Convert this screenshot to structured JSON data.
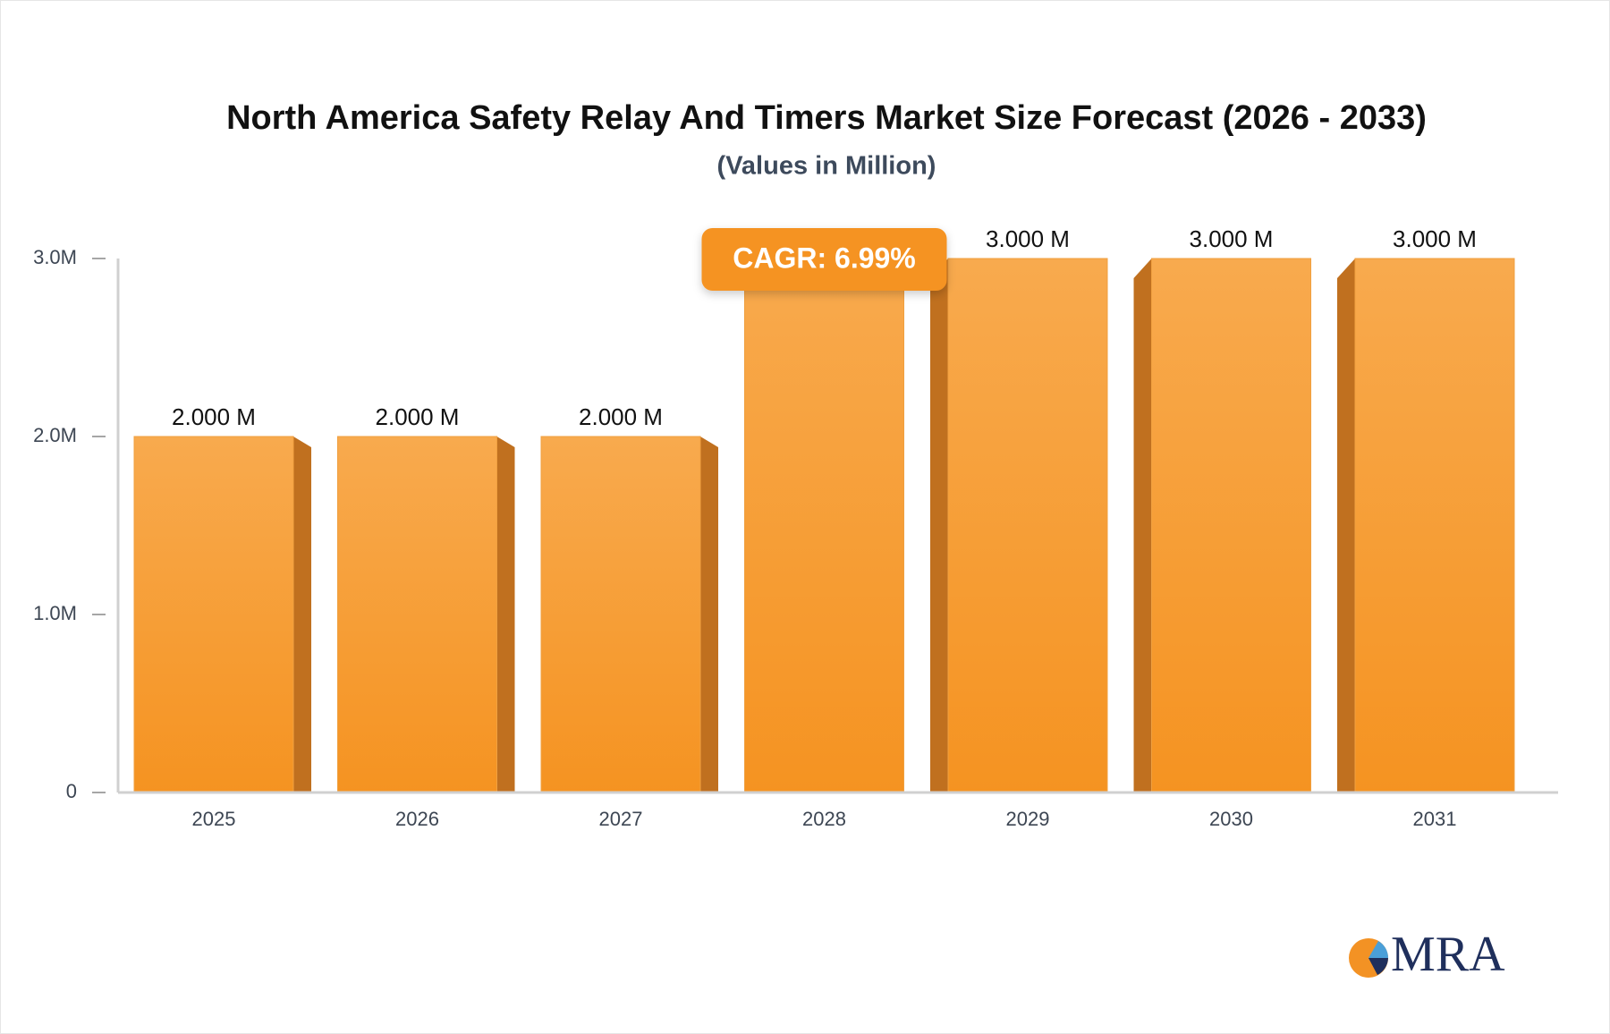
{
  "chart_data": {
    "type": "bar",
    "title": "North America Safety Relay And Timers Market Size Forecast (2026 - 2033)",
    "subtitle": "(Values in Million)",
    "categories": [
      "2025",
      "2026",
      "2027",
      "2028",
      "2029",
      "2030",
      "2031"
    ],
    "values": [
      2,
      2,
      2,
      3,
      3,
      3,
      3
    ],
    "value_labels": [
      "2.000 M",
      "2.000 M",
      "2.000 M",
      null,
      "3.000 M",
      "3.000 M",
      "3.000 M"
    ],
    "color": "#f7a13c",
    "ylim": [
      0,
      3
    ],
    "yticks": [
      0,
      {
        "value": 1,
        "label": "1.0M"
      },
      {
        "value": 2,
        "label": "2.0M"
      },
      {
        "value": 3,
        "label": "3.0M"
      }
    ],
    "grid": false,
    "annotation": "CAGR: 6.99%",
    "logo": "MRA"
  }
}
